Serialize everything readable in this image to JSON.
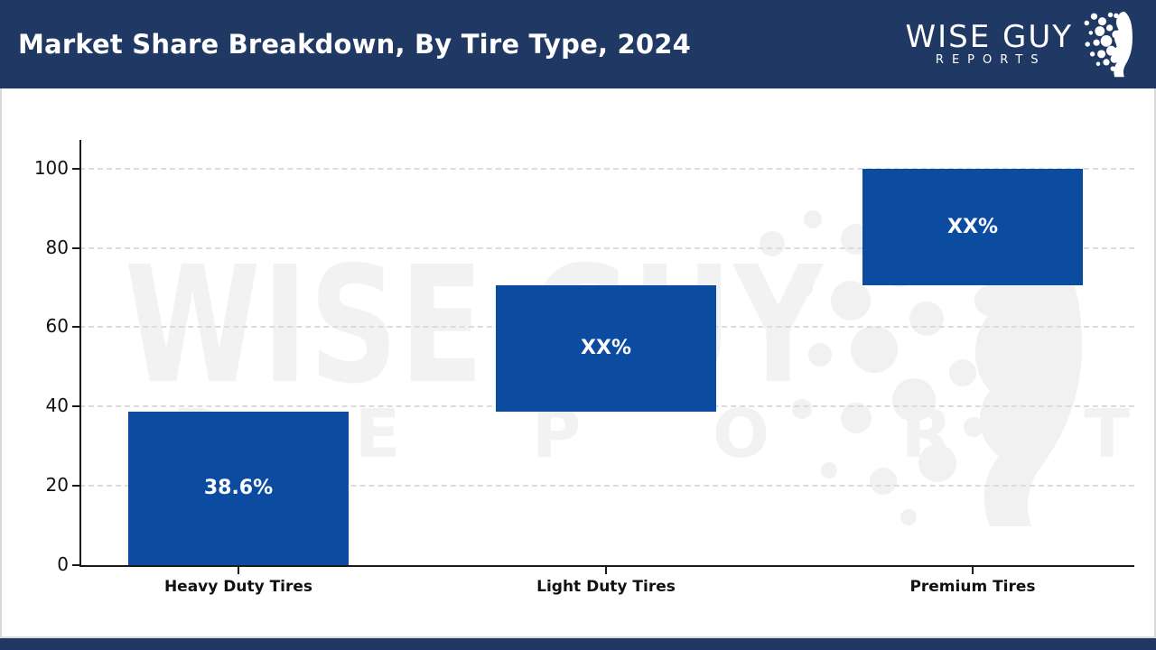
{
  "header": {
    "title": "Market Share Breakdown, By Tire Type, 2024",
    "logo": {
      "line1": "WISE GUY",
      "line2": "REPORTS"
    }
  },
  "watermark": {
    "line1": "WISE GUY",
    "line2": "R E P O R T S"
  },
  "chart_data": {
    "type": "bar",
    "variant": "waterfall",
    "title": "Market Share Breakdown, By Tire Type, 2024",
    "categories": [
      "Heavy Duty Tires",
      "Light Duty Tires",
      "Premium Tires"
    ],
    "segments": [
      {
        "category": "Heavy Duty Tires",
        "start": 0,
        "end": 38.6,
        "label": "38.6%"
      },
      {
        "category": "Light Duty Tires",
        "start": 38.6,
        "end": 70.6,
        "label": "XX%"
      },
      {
        "category": "Premium Tires",
        "start": 70.6,
        "end": 100,
        "label": "XX%"
      }
    ],
    "yticks": [
      0,
      20,
      40,
      60,
      80,
      100
    ],
    "ylim": [
      0,
      107
    ],
    "xlabel": "",
    "ylabel": "",
    "grid": {
      "horizontal": true,
      "style": "dashed"
    },
    "legend": "none",
    "bar_color": "#0b4ba0",
    "bar_label_color": "#ffffff"
  },
  "colors": {
    "header_bg": "#203864",
    "footer_bg": "#203864",
    "bar": "#0b4ba0",
    "watermark": "#f2f2f2",
    "gridline": "#dcdcdc",
    "axis": "#1a1a1a",
    "tick_text": "#111111"
  }
}
